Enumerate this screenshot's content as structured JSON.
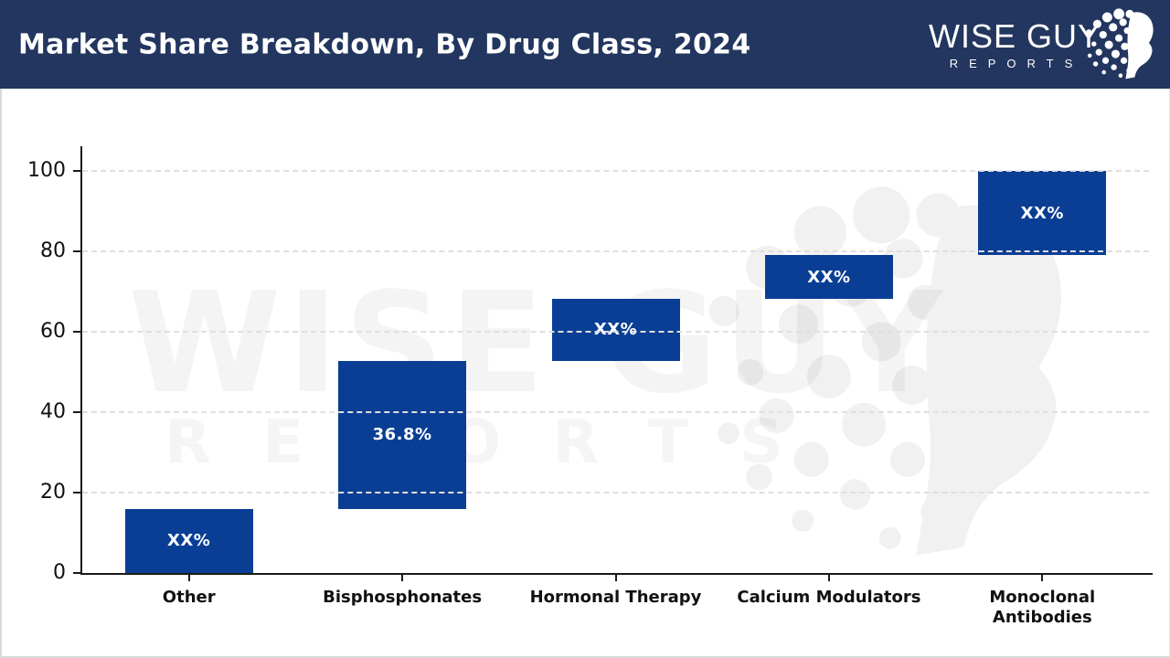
{
  "header": {
    "title": "Market Share Breakdown, By Drug Class, 2024",
    "bg_color": "#22365f",
    "logo": {
      "line1": "WISE GUY",
      "line2": "REPORTS"
    }
  },
  "watermark": {
    "line1": "WISE GUY",
    "line2": "REPORTS"
  },
  "colors": {
    "header_bg": "#22365f",
    "bar_blue": "#0a3e94",
    "gridline": "#dfdfdf",
    "axis": "#1a1a1a"
  },
  "chart_data": {
    "type": "bar",
    "subtype": "waterfall",
    "title": "Market Share Breakdown, By Drug Class, 2024",
    "categories": [
      "Other",
      "Bisphosphonates",
      "Hormonal Therapy",
      "Calcium Modulators",
      "Monoclonal Antibodies"
    ],
    "segments": [
      {
        "category": "Other",
        "start": 0,
        "end": 16,
        "value": 16,
        "label": "XX%"
      },
      {
        "category": "Bisphosphonates",
        "start": 16,
        "end": 52.8,
        "value": 36.8,
        "label": "36.8%"
      },
      {
        "category": "Hormonal Therapy",
        "start": 52.8,
        "end": 68.2,
        "value": 15.4,
        "label": "XX%"
      },
      {
        "category": "Calcium Modulators",
        "start": 68.2,
        "end": 79,
        "value": 10.8,
        "label": "XX%"
      },
      {
        "category": "Monoclonal Antibodies",
        "start": 79,
        "end": 100,
        "value": 21,
        "label": "XX%"
      }
    ],
    "bar_color": "#0a3e94",
    "xlabel": "",
    "ylabel": "",
    "yticks": [
      0,
      20,
      40,
      60,
      80,
      100
    ],
    "ylim": [
      0,
      100
    ],
    "grid": "horizontal-dashed",
    "legend": "none"
  }
}
